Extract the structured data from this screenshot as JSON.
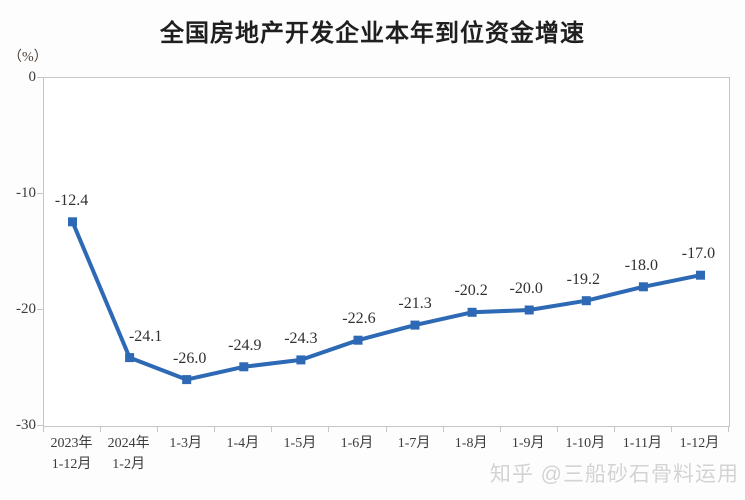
{
  "title": "全国房地产开发企业本年到位资金增速",
  "y_axis_unit": "（%）",
  "watermark": "知乎 @三船砂石骨料运用",
  "colors": {
    "series": "#2D69B4",
    "axis": "#c6c6c6",
    "label_text": "#303030"
  },
  "chart_data": {
    "type": "line",
    "title": "全国房地产开发企业本年到位资金增速",
    "xlabel": "",
    "ylabel": "（%）",
    "categories": [
      "2023年\n1-12月",
      "2024年\n1-2月",
      "1-3月",
      "1-4月",
      "1-5月",
      "1-6月",
      "1-7月",
      "1-8月",
      "1-9月",
      "1-10月",
      "1-11月",
      "1-12月"
    ],
    "series": [
      {
        "name": "本年到位资金增速",
        "values": [
          -12.4,
          -24.1,
          -26.0,
          -24.9,
          -24.3,
          -22.6,
          -21.3,
          -20.2,
          -20.0,
          -19.2,
          -18.0,
          -17.0
        ]
      }
    ],
    "ylim": [
      -30,
      0
    ],
    "y_ticks": [
      0,
      -10,
      -20,
      -30
    ],
    "grid": false,
    "legend": "none",
    "marker": "square",
    "data_labels": true,
    "series_color": "#2D69B4"
  }
}
